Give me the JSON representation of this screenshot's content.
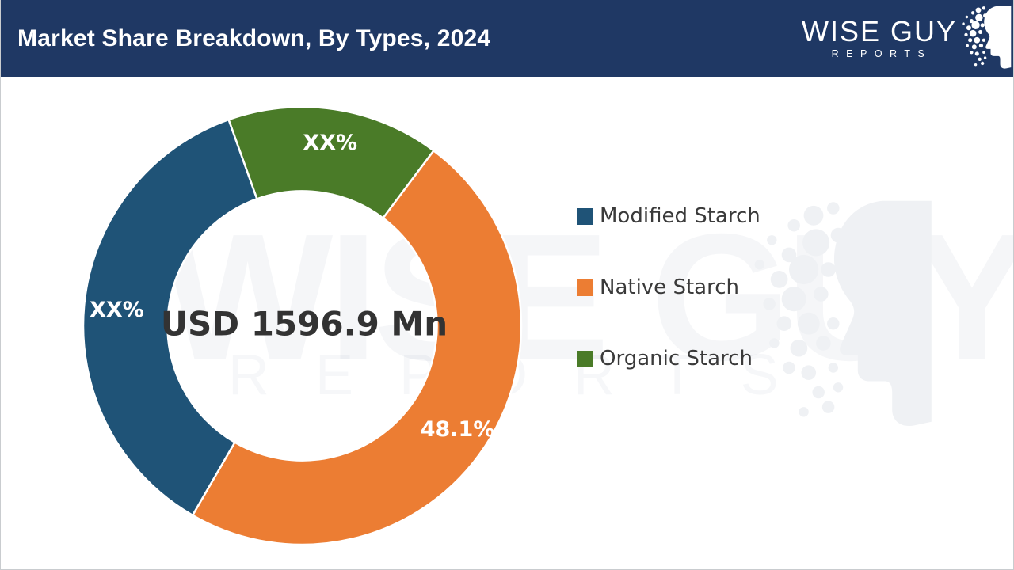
{
  "header": {
    "title": "Market Share Breakdown, By Types, 2024",
    "logo": {
      "brand": "WISE GUY",
      "sub": "REPORTS"
    }
  },
  "watermark": {
    "brand": "WISE GUY",
    "sub": "REPORTS"
  },
  "chart_data": {
    "type": "pie",
    "subtype": "donut",
    "title": "Market Share Breakdown, By Types, 2024",
    "center_label": "USD 1596.9 Mn",
    "legend_position": "right",
    "grid": false,
    "donut_hole_ratio": 0.615,
    "rotation_deg": -19.64,
    "draw_order": [
      2,
      1,
      0
    ],
    "segments": [
      {
        "label": "Modified Starch",
        "display_label": "XX%",
        "value_pct": 36.2,
        "color": "#1F5377"
      },
      {
        "label": "Native Starch",
        "display_label": "48.1%",
        "value_pct": 48.1,
        "color": "#EC7D33"
      },
      {
        "label": "Organic Starch",
        "display_label": "XX%",
        "value_pct": 15.7,
        "color": "#4A7B28"
      }
    ]
  },
  "colors": {
    "header_bg": "#1F3864",
    "center_text": "#333333",
    "legend_text": "#3A3A3A",
    "slice_label_text": "#FFFFFF"
  }
}
